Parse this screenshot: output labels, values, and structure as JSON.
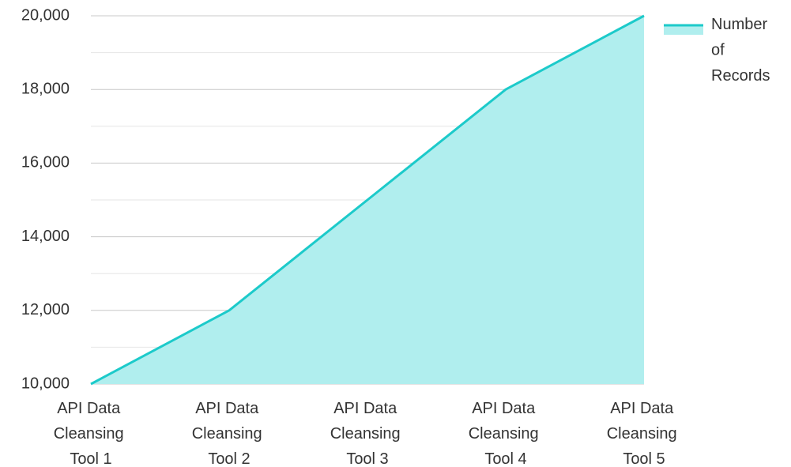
{
  "chart_data": {
    "type": "area",
    "categories": [
      "API Data Cleansing Tool 1",
      "API Data Cleansing Tool 2",
      "API Data Cleansing Tool 3",
      "API Data Cleansing Tool 4",
      "API Data Cleansing Tool 5"
    ],
    "series": [
      {
        "name": "Number of Records",
        "color": "#1ccaca",
        "fill": "#b0eeee",
        "values": [
          10000,
          12000,
          15000,
          18000,
          20000
        ]
      }
    ],
    "ylim": [
      10000,
      20000
    ],
    "yticks": [
      {
        "value": 10000,
        "label": "10,000"
      },
      {
        "value": 12000,
        "label": "12,000"
      },
      {
        "value": 14000,
        "label": "14,000"
      },
      {
        "value": 16000,
        "label": "16,000"
      },
      {
        "value": 18000,
        "label": "18,000"
      },
      {
        "value": 20000,
        "label": "20,000"
      }
    ],
    "minor_yticks": [
      11000,
      13000,
      15000,
      17000,
      19000
    ],
    "grid": true,
    "legend": "top-right"
  }
}
